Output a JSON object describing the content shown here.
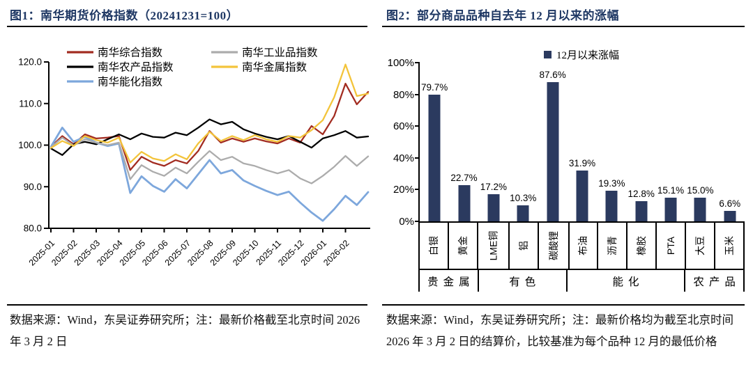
{
  "panels": {
    "left": {
      "title": "图1：南华期货价格指数（20241231=100）",
      "source_note": "数据来源：Wind，东吴证券研究所；注：最新价格截至北京时间 2026 年 3 月 2 日"
    },
    "right": {
      "title": "图2：部分商品品种自去年 12 月以来的涨幅",
      "source_note": "数据来源：Wind，东吴证券研究所；注：最新价格均为截至北京时间 2026 年 3 月 2 日的结算价，比较基准为每个品种 12 月的最低价格"
    }
  },
  "chart_data": [
    {
      "type": "line",
      "title": "南华期货价格指数（20241231=100）",
      "x_tick_labels": [
        "2025-01",
        "2025-02",
        "2025-03",
        "2025-04",
        "2025-05",
        "2025-06",
        "2025-07",
        "2025-08",
        "2025-09",
        "2025-10",
        "2025-11",
        "2025-12",
        "2026-01",
        "2026-02"
      ],
      "x_months_since_2025_01": [
        0,
        0.5,
        1,
        1.5,
        2,
        2.5,
        3,
        3.5,
        4,
        4.5,
        5,
        5.5,
        6,
        6.5,
        7,
        7.5,
        8,
        8.5,
        9,
        9.5,
        10,
        10.5,
        11,
        11.5,
        12,
        12.5,
        13,
        13.5,
        14
      ],
      "ylim": [
        80,
        120
      ],
      "y_ticks": [
        80,
        90,
        100,
        110,
        120
      ],
      "y_tick_labels": [
        "80.0",
        "90.0",
        "100.0",
        "110.0",
        "120.0"
      ],
      "grid": false,
      "legend_position": "top-inside",
      "legend_columns": [
        [
          0,
          1,
          2
        ],
        [
          3,
          4
        ]
      ],
      "series": [
        {
          "name": "南华综合指数",
          "color": "#A22C21",
          "width": 2.3,
          "values": [
            99.6,
            102.2,
            100.2,
            102.6,
            101.6,
            101.8,
            102.2,
            94.0,
            97.2,
            95.8,
            95.0,
            96.4,
            95.6,
            98.6,
            103.4,
            100.6,
            101.6,
            100.8,
            101.6,
            100.9,
            100.4,
            101.6,
            100.6,
            104.6,
            102.6,
            107.0,
            114.8,
            109.8,
            112.8
          ]
        },
        {
          "name": "南华农产品指数",
          "color": "#000000",
          "width": 2.3,
          "values": [
            99.2,
            97.6,
            100.2,
            100.8,
            100.2,
            101.4,
            102.6,
            101.4,
            102.8,
            102.0,
            101.8,
            103.0,
            102.4,
            104.2,
            106.2,
            105.0,
            105.6,
            103.8,
            102.8,
            102.0,
            101.4,
            102.2,
            100.8,
            99.4,
            101.6,
            102.4,
            103.4,
            101.8,
            102.1
          ]
        },
        {
          "name": "南华能化指数",
          "color": "#7DA7DC",
          "width": 2.8,
          "values": [
            99.6,
            104.2,
            100.8,
            102.0,
            100.6,
            99.8,
            100.4,
            88.5,
            92.5,
            90.2,
            88.8,
            91.8,
            89.6,
            93.0,
            96.4,
            93.2,
            94.0,
            91.5,
            90.2,
            89.0,
            88.0,
            88.8,
            86.2,
            83.8,
            81.8,
            84.6,
            87.8,
            85.6,
            88.7
          ]
        },
        {
          "name": "南华工业品指数",
          "color": "#ACACAC",
          "width": 2.3,
          "values": [
            99.5,
            101.8,
            99.9,
            101.4,
            100.6,
            100.0,
            100.6,
            91.8,
            95.2,
            93.6,
            92.6,
            94.6,
            93.2,
            96.0,
            98.6,
            96.4,
            97.2,
            95.6,
            95.0,
            94.0,
            93.2,
            94.0,
            92.0,
            90.8,
            92.6,
            94.8,
            97.4,
            95.0,
            97.3
          ]
        },
        {
          "name": "南华金属指数",
          "color": "#F3C43B",
          "width": 2.3,
          "values": [
            99.3,
            101.0,
            99.8,
            102.2,
            101.2,
            100.6,
            101.8,
            95.8,
            98.4,
            96.8,
            96.2,
            97.8,
            96.6,
            100.4,
            103.2,
            101.0,
            102.2,
            101.2,
            102.4,
            101.4,
            100.8,
            102.2,
            101.8,
            103.6,
            106.0,
            111.5,
            119.4,
            111.8,
            112.4
          ]
        }
      ]
    },
    {
      "type": "bar",
      "legend": "12月以来涨幅",
      "bar_color": "#2B3A5F",
      "ylim": [
        0,
        100
      ],
      "y_ticks": [
        0,
        20,
        40,
        60,
        80,
        100
      ],
      "y_tick_labels": [
        "0%",
        "20%",
        "40%",
        "60%",
        "80%",
        "100%"
      ],
      "categories": [
        "白银",
        "黄金",
        "LME铜",
        "铝",
        "碳酸锂",
        "布油",
        "沥青",
        "橡胶",
        "PTA",
        "大豆",
        "玉米"
      ],
      "values": [
        79.7,
        22.7,
        17.2,
        10.3,
        87.6,
        31.9,
        19.3,
        12.8,
        15.1,
        15.0,
        6.6
      ],
      "value_labels": [
        "79.7%",
        "22.7%",
        "17.2%",
        "10.3%",
        "87.6%",
        "31.9%",
        "19.3%",
        "12.8%",
        "15.1%",
        "15.0%",
        "6.6%"
      ],
      "groups": [
        {
          "label": "贵金属",
          "span": 2
        },
        {
          "label": "有色",
          "span": 3
        },
        {
          "label": "能化",
          "span": 4
        },
        {
          "label": "农产品",
          "span": 2
        }
      ]
    }
  ]
}
